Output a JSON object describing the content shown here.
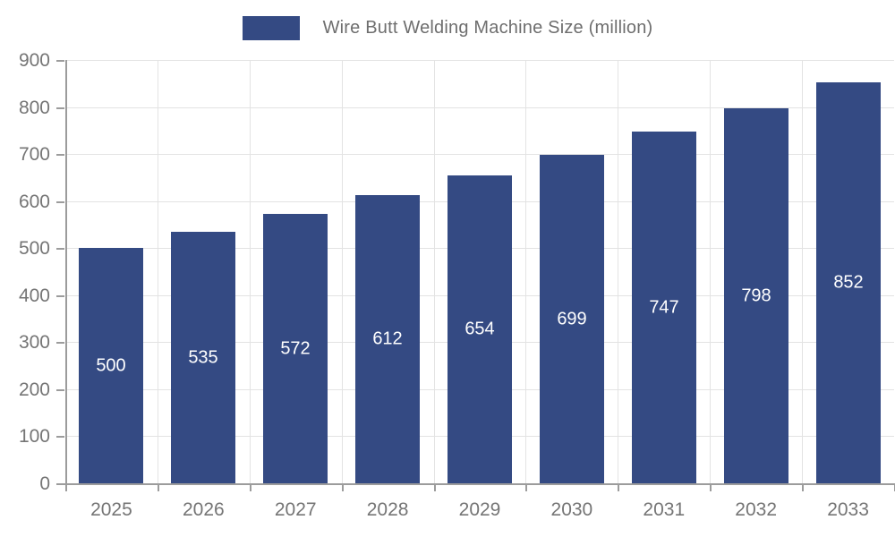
{
  "chart_data": {
    "type": "bar",
    "title": "Wire Butt Welding Machine Size (million)",
    "categories": [
      "2025",
      "2026",
      "2027",
      "2028",
      "2029",
      "2030",
      "2031",
      "2032",
      "2033"
    ],
    "values": [
      500,
      535,
      572,
      612,
      654,
      699,
      747,
      798,
      852
    ],
    "xlabel": "",
    "ylabel": "",
    "ylim": [
      0,
      900
    ],
    "ytick_step": 100,
    "grid": true,
    "legend_position": "top-center",
    "bar_labels_inside": true,
    "colors": {
      "bar": "#344a83",
      "bar_label": "#ffffff",
      "axis_text": "#757575",
      "legend_text": "#6e6e6e",
      "gridline": "#e3e3e3",
      "axis_line": "#9c9c9c",
      "background": "#ffffff"
    }
  }
}
